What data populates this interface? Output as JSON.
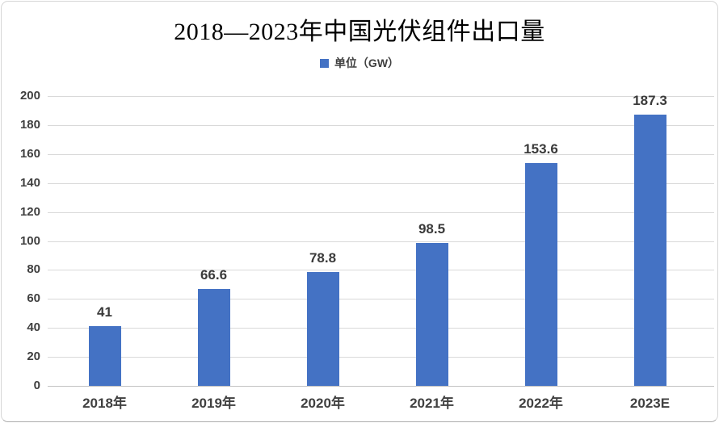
{
  "chart_data": {
    "type": "bar",
    "title": "2018—2023年中国光伏组件出口量",
    "legend": [
      "单位（GW）"
    ],
    "legend_position": "top",
    "categories": [
      "2018年",
      "2019年",
      "2020年",
      "2021年",
      "2022年",
      "2023E"
    ],
    "values": [
      41,
      66.6,
      78.8,
      98.5,
      153.6,
      187.3
    ],
    "value_labels": [
      "41",
      "66.6",
      "78.8",
      "98.5",
      "153.6",
      "187.3"
    ],
    "xlabel": "",
    "ylabel": "",
    "ylim": [
      0,
      200
    ],
    "ytick_step": 20,
    "yticks": [
      0,
      20,
      40,
      60,
      80,
      100,
      120,
      140,
      160,
      180,
      200
    ],
    "grid": true
  },
  "colors": {
    "bar": "#4472C4",
    "grid": "#D9D9D9",
    "tick_text": "#404040",
    "title_text": "#000000",
    "frame_border": "#D6D6D6"
  }
}
